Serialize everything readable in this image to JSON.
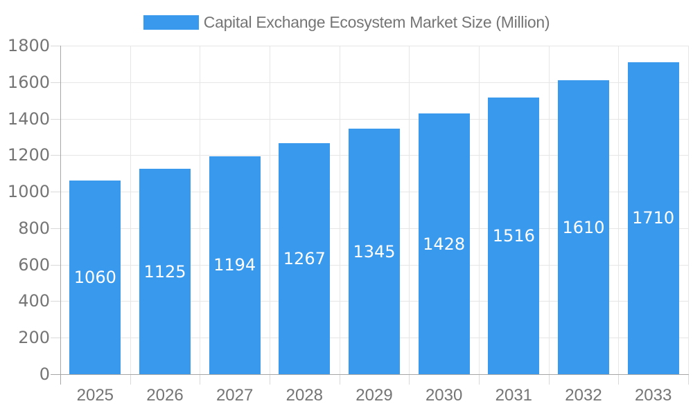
{
  "legend": {
    "label": "Capital Exchange Ecosystem Market Size (Million)"
  },
  "colors": {
    "bar": "#3999ed",
    "bar_label": "#ffffff",
    "axis_text": "#757575",
    "gridline": "#e6e6e6",
    "tick": "#d9d9d9",
    "axis_line": "#a6a6a6",
    "background": "#ffffff"
  },
  "chart_data": {
    "type": "bar",
    "title": "Capital Exchange Ecosystem Market Size (Million)",
    "categories": [
      "2025",
      "2026",
      "2027",
      "2028",
      "2029",
      "2030",
      "2031",
      "2032",
      "2033"
    ],
    "values": [
      1060,
      1125,
      1194,
      1267,
      1345,
      1428,
      1516,
      1610,
      1710
    ],
    "xlabel": "",
    "ylabel": "",
    "ylim": [
      0,
      1800
    ],
    "ytick_step": 200,
    "ytick_labels": [
      "0",
      "200",
      "400",
      "600",
      "800",
      "1000",
      "1200",
      "1400",
      "1600",
      "1800"
    ],
    "grid": "on",
    "legend_position": "top-center",
    "value_labels": "inside-center"
  }
}
